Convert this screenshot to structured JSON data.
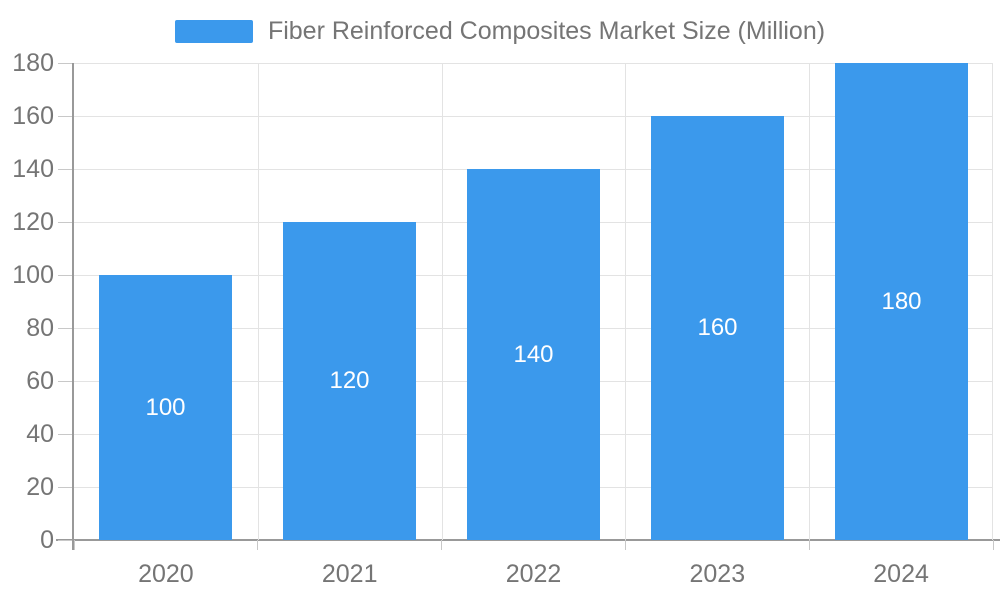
{
  "chart_data": {
    "type": "bar",
    "title": "Fiber Reinforced Composites Market Size (Million)",
    "categories": [
      "2020",
      "2021",
      "2022",
      "2023",
      "2024"
    ],
    "values": [
      100,
      120,
      140,
      160,
      180
    ],
    "series": [
      {
        "name": "Fiber Reinforced Composites Market Size (Million)",
        "values": [
          100,
          120,
          140,
          160,
          180
        ]
      }
    ],
    "xlabel": "",
    "ylabel": "",
    "ylim": [
      0,
      180
    ],
    "ytick_step": 20,
    "ytick_labels": [
      "0",
      "20",
      "40",
      "60",
      "80",
      "100",
      "120",
      "140",
      "160",
      "180"
    ],
    "bar_value_labels": [
      "100",
      "120",
      "140",
      "160",
      "180"
    ],
    "grid": true,
    "legend_position": "top-center",
    "colors": {
      "bar": "#3b99ec",
      "bar_label": "#ffffff",
      "axis_text": "#757575",
      "axis_line": "#999999",
      "tick_line": "#c8c8c8",
      "gridline": "#e3e3e3",
      "background": "#ffffff"
    }
  }
}
